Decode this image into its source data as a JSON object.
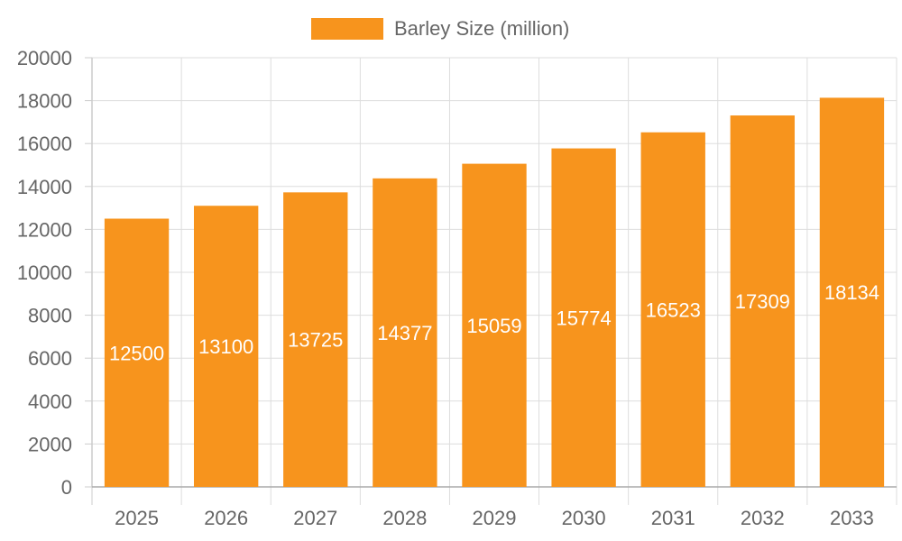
{
  "chart_data": {
    "type": "bar",
    "categories": [
      "2025",
      "2026",
      "2027",
      "2028",
      "2029",
      "2030",
      "2031",
      "2032",
      "2033"
    ],
    "series": [
      {
        "name": "Barley Size (million)",
        "values": [
          12500,
          13100,
          13725,
          14377,
          15059,
          15774,
          16523,
          17309,
          18134
        ],
        "color": "#f7941d"
      }
    ],
    "ylim": [
      0,
      20000
    ],
    "yticks": [
      0,
      2000,
      4000,
      6000,
      8000,
      10000,
      12000,
      14000,
      16000,
      18000,
      20000
    ],
    "grid": true,
    "legend_position": "top-center",
    "data_labels": "inside-middle"
  }
}
